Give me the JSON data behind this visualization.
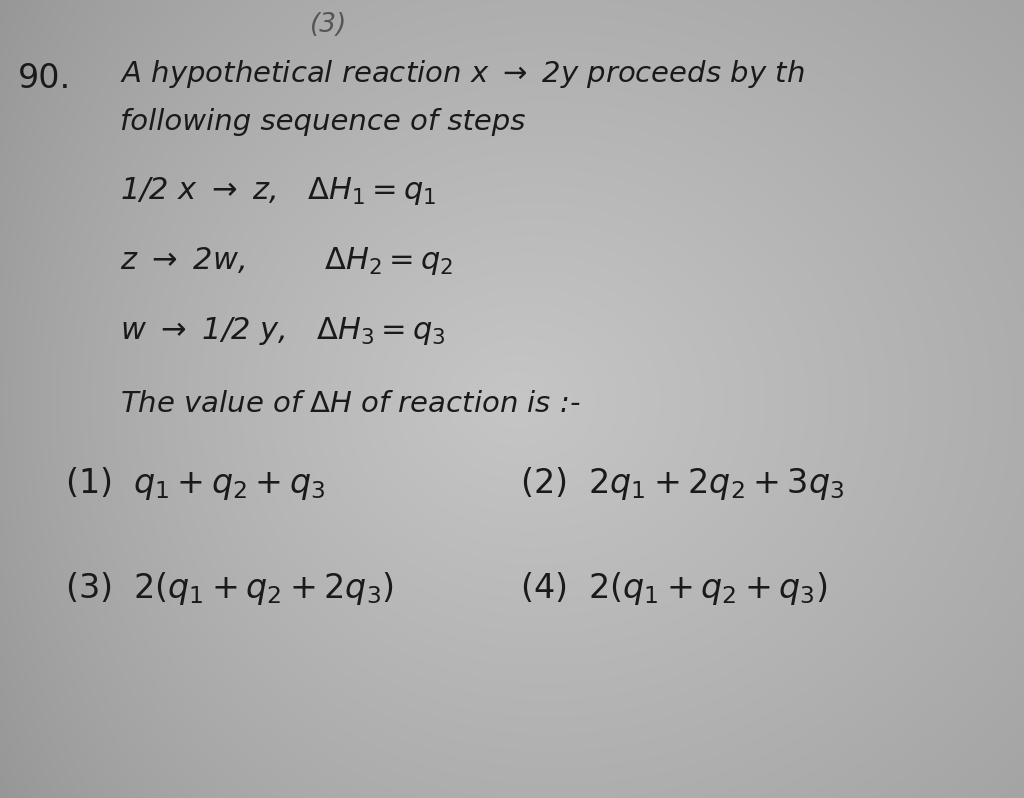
{
  "background_color": "#c8c4be",
  "text_color": "#1a1a1a",
  "fig_width": 10.24,
  "fig_height": 7.98,
  "dpi": 100
}
